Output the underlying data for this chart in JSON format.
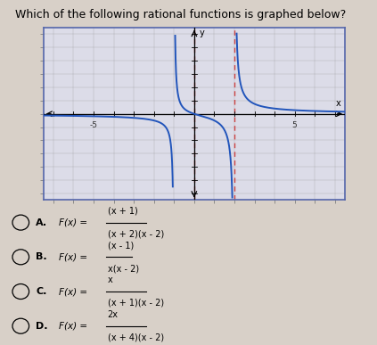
{
  "title": "Which of the following rational functions is graphed below?",
  "title_fontsize": 9,
  "graph_xlim": [
    -7.5,
    7.5
  ],
  "graph_ylim": [
    -6.5,
    6.5
  ],
  "asymptote_color": "#cc4444",
  "curve_color": "#2255bb",
  "background_color": "#d8d0c8",
  "graph_bg": "#dcdce8",
  "graph_border_color": "#5566aa",
  "opt_labels": [
    "A.",
    "B.",
    "C.",
    "D."
  ],
  "opt_nums": [
    "(x + 1)",
    "(x - 1)",
    "x",
    "2x"
  ],
  "opt_dens": [
    "(x + 2)(x - 2)",
    "x(x - 2)",
    "(x + 1)(x - 2)",
    "(x + 4)(x - 2)"
  ]
}
